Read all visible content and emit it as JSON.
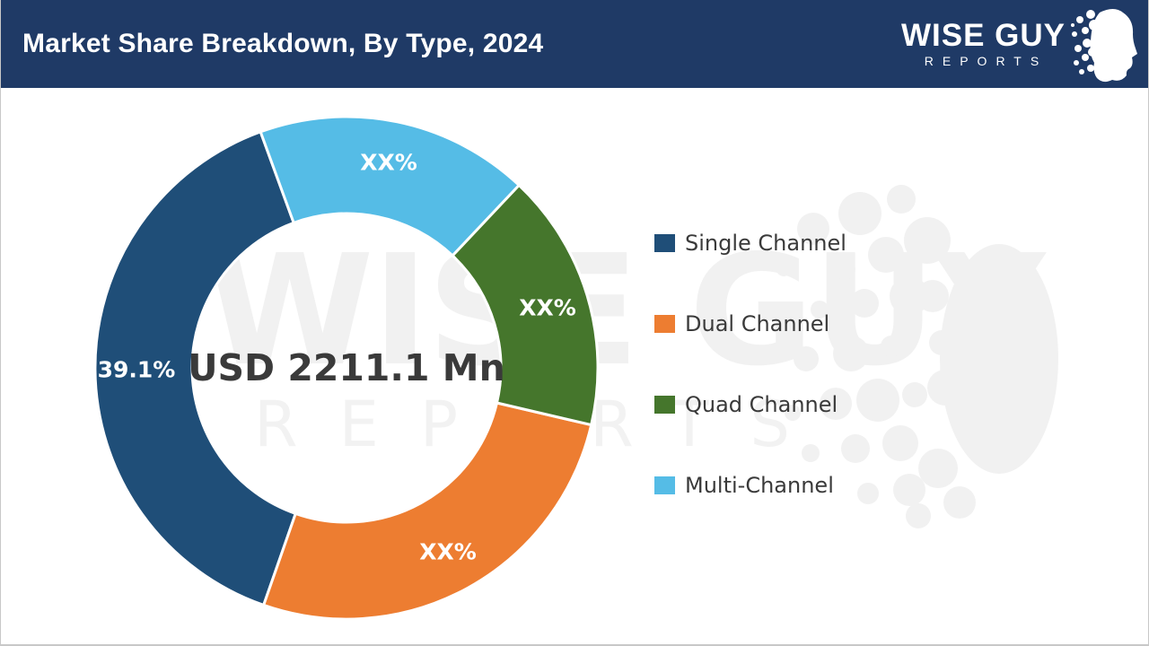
{
  "header": {
    "title": "Market Share Breakdown, By Type, 2024",
    "logo": {
      "line1": "WISE GUY",
      "line2": "REPORTS"
    },
    "bg_color": "#1f3a66"
  },
  "watermark": {
    "line1": "WISE GUY",
    "line2": "REPORTS"
  },
  "chart_data": {
    "type": "pie",
    "donut": true,
    "title": "Market Share Breakdown, By Type, 2024",
    "center_label": "USD 2211.1 Mn",
    "start_angle": 110,
    "counterclockwise": true,
    "legend_position": "right",
    "series": [
      {
        "name": "Single Channel",
        "value": 39.1,
        "display_label": "39.1%",
        "color": "#1f4e78"
      },
      {
        "name": "Dual Channel",
        "value": 26.7,
        "display_label": "XX%",
        "color": "#ed7d31"
      },
      {
        "name": "Quad Channel",
        "value": 16.6,
        "display_label": "XX%",
        "color": "#45762c"
      },
      {
        "name": "Multi-Channel",
        "value": 17.6,
        "display_label": "XX%",
        "color": "#55bce6"
      }
    ]
  },
  "colors": {
    "header_bg": "#1f3a66",
    "text_dark": "#3a3a3a",
    "watermark": "#f1f1f1",
    "border": "#c8c8c8"
  }
}
